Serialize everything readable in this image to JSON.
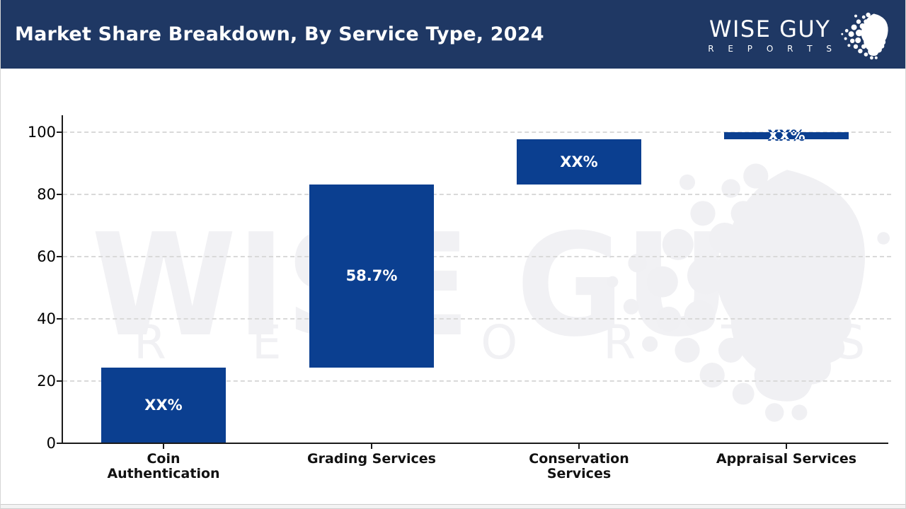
{
  "header": {
    "title": "Market Share Breakdown, By Service Type, 2024",
    "logo": {
      "line1": "WISE GUY",
      "line2": "R E P O R T S"
    }
  },
  "watermark": {
    "line1": "WISE GUY",
    "line2": "R E P O R T S"
  },
  "colors": {
    "header_bg": "#1F3864",
    "bar_blue": "#0B3F90",
    "grid_gray": "#D9D9D9",
    "watermark_gray": "#F1F1F4",
    "axis_black": "#1A1A1A"
  },
  "chart_data": {
    "type": "bar",
    "subtype": "waterfall",
    "title": "Market Share Breakdown, By Service Type, 2024",
    "xlabel": "",
    "ylabel": "",
    "categories": [
      "Coin\nAuthentication",
      "Grading Services",
      "Conservation\nServices",
      "Appraisal Services"
    ],
    "segments": [
      {
        "category": "Coin Authentication",
        "start": 0,
        "end": 24.3,
        "label": "XX%"
      },
      {
        "category": "Grading Services",
        "start": 24.3,
        "end": 83.0,
        "label": "58.7%"
      },
      {
        "category": "Conservation Services",
        "start": 83.0,
        "end": 97.7,
        "label": "XX%"
      },
      {
        "category": "Appraisal Services",
        "start": 97.7,
        "end": 100.0,
        "label": "XX%"
      }
    ],
    "yticks": [
      0,
      20,
      40,
      60,
      80,
      100
    ],
    "ylim": [
      0,
      105
    ],
    "grid": "horizontal-dashed",
    "legend": "none"
  }
}
